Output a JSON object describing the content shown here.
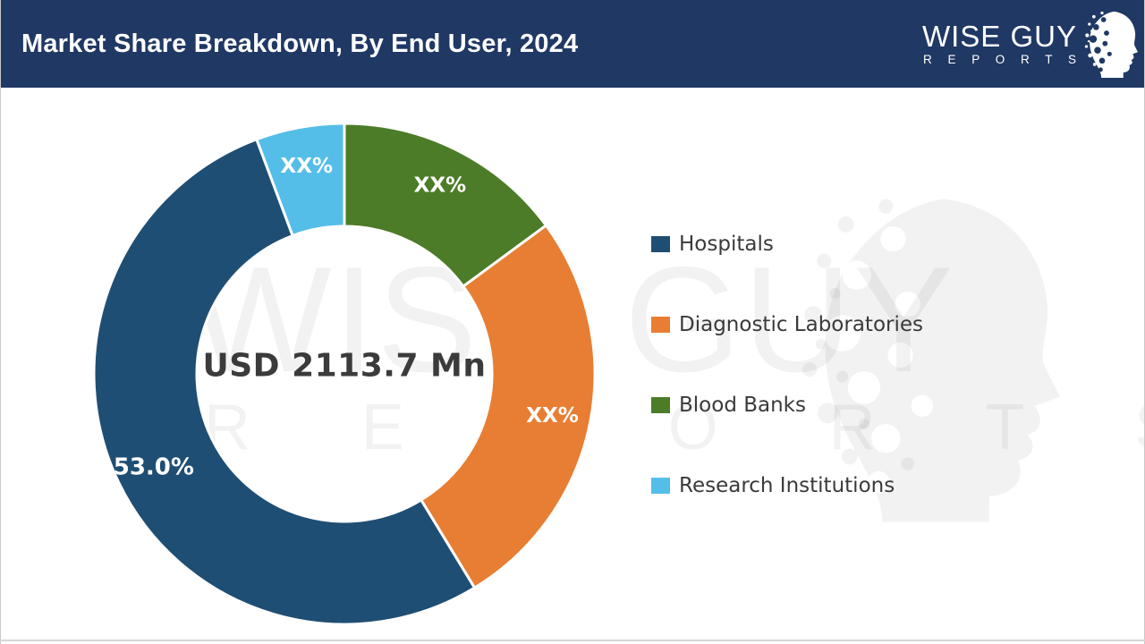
{
  "header": {
    "logo": {
      "line1": "WISE GUY",
      "line2": "R E P O R T S"
    },
    "bg_color": "#203864"
  },
  "watermark": {
    "line1": "WISE GUY",
    "line2": "R E P O R T S"
  },
  "chart_data": {
    "type": "pie",
    "subtype": "donut",
    "title": "Market Share Breakdown, By End User, 2024",
    "center_label": "USD 2113.7 Mn",
    "slices": [
      {
        "label": "Hospitals",
        "pct": 53.0,
        "display_pct": "53.0%",
        "color": "#1F4E74"
      },
      {
        "label": "Diagnostic Laboratories",
        "pct": 26.4,
        "display_pct": "XX%",
        "color": "#E87E33"
      },
      {
        "label": "Blood Banks",
        "pct": 14.9,
        "display_pct": "XX%",
        "color": "#4C7C28"
      },
      {
        "label": "Research Institutions",
        "pct": 5.7,
        "display_pct": "XX%",
        "color": "#55BEE8"
      }
    ],
    "clockwise_order_from_top": [
      "Blood Banks",
      "Diagnostic Laboratories",
      "Hospitals",
      "Research Institutions"
    ],
    "legend_position": "right",
    "values_hidden_as": "XX%"
  }
}
